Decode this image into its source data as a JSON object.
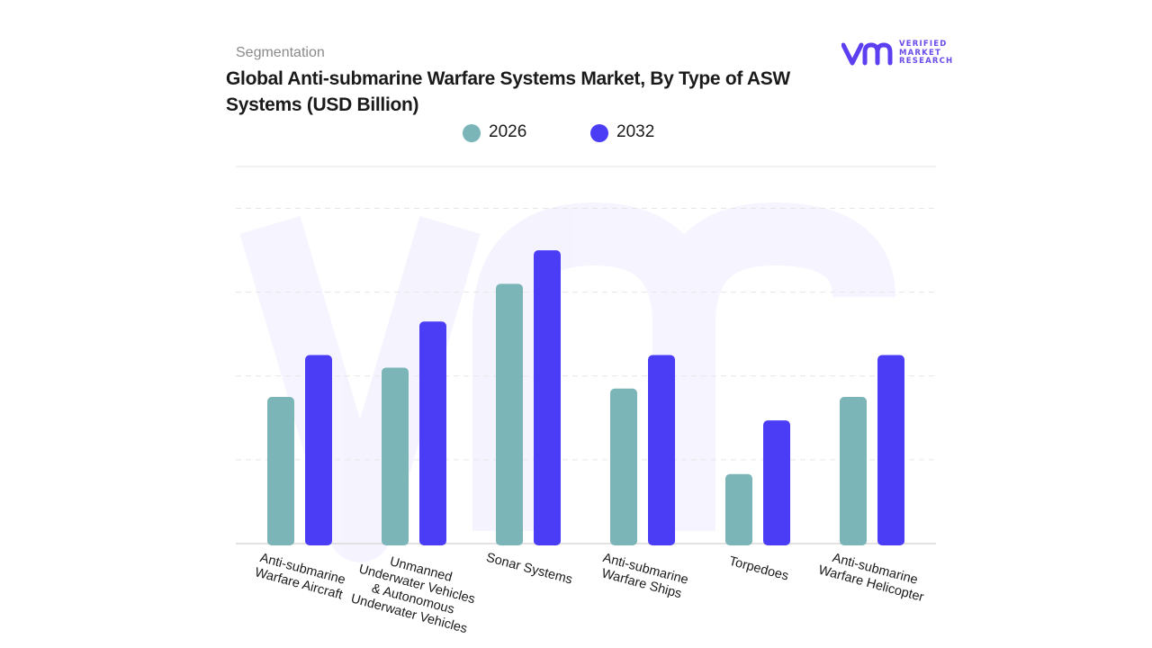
{
  "header": {
    "segment_label": "Segmentation",
    "title": "Global Anti-submarine Warfare Systems Market, By Type of ASW Systems (USD Billion)"
  },
  "logo": {
    "lines": [
      "VERIFIED",
      "MARKET",
      "RESEARCH"
    ],
    "color": "#5b3ff0"
  },
  "colors": {
    "series_2026": "#7bb5b8",
    "series_2032": "#4b3df5",
    "grid": "#e6e6e6",
    "axis": "#d9d9d9"
  },
  "chart_data": {
    "type": "bar",
    "title": "Global Anti-submarine Warfare Systems Market, By Type of ASW Systems (USD Billion)",
    "categories": [
      "Anti-submarine Warfare Aircraft",
      "Unmanned Underwater Vehicles & Autonomous Underwater Vehicles",
      "Sonar Systems",
      "Anti-submarine Warfare Ships",
      "Torpedoes",
      "Anti-submarine Warfare Helicopter"
    ],
    "category_label_lines": [
      [
        "Anti-submarine",
        "Warfare Aircraft"
      ],
      [
        "Unmanned",
        "Underwater Vehicles",
        "& Autonomous",
        "Underwater Vehicles"
      ],
      [
        "Sonar Systems"
      ],
      [
        "Anti-submarine",
        "Warfare Ships"
      ],
      [
        "Torpedoes"
      ],
      [
        "Anti-submarine",
        "Warfare Helicopter"
      ]
    ],
    "series": [
      {
        "name": "2026",
        "values": [
          1.75,
          2.1,
          3.1,
          1.85,
          0.83,
          1.75
        ]
      },
      {
        "name": "2032",
        "values": [
          2.25,
          2.65,
          3.5,
          2.25,
          1.47,
          2.25
        ]
      }
    ],
    "ylim": [
      0,
      4.5
    ],
    "grid": true,
    "legend_position": "top",
    "xlabel": "",
    "ylabel": ""
  }
}
